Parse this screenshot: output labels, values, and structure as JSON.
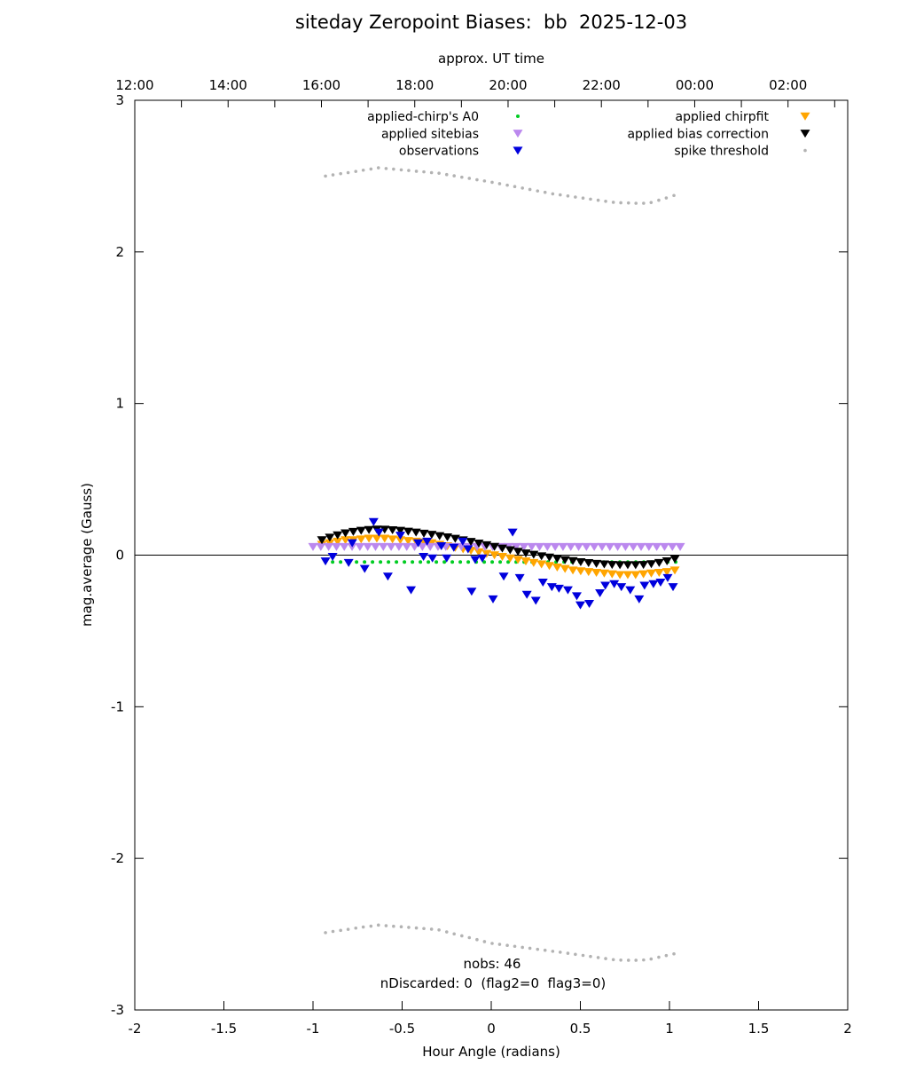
{
  "title": "siteday Zeropoint Biases:  bb  2025-12-03",
  "annotations": {
    "nobs": "nobs: 46",
    "ndiscarded": "nDiscarded: 0  (flag2=0  flag3=0)"
  },
  "x_axis": {
    "title": "Hour Angle (radians)",
    "min": -2,
    "max": 2,
    "ticks": [
      -2,
      -1.5,
      -1,
      -0.5,
      0,
      0.5,
      1,
      1.5,
      2
    ],
    "tick_labels": [
      "-2",
      "-1.5",
      "-1",
      "-0.5",
      "0",
      "0.5",
      "1",
      "1.5",
      "2"
    ]
  },
  "x2_axis": {
    "title": "approx. UT time",
    "start_rad": -2,
    "rad_per_hour": 0.261799,
    "labels": [
      {
        "hour": 0,
        "text": "12:00"
      },
      {
        "hour": 2,
        "text": "14:00"
      },
      {
        "hour": 4,
        "text": "16:00"
      },
      {
        "hour": 6,
        "text": "18:00"
      },
      {
        "hour": 8,
        "text": "20:00"
      },
      {
        "hour": 10,
        "text": "22:00"
      },
      {
        "hour": 12,
        "text": "00:00"
      },
      {
        "hour": 14,
        "text": "02:00"
      }
    ],
    "minor_hours": [
      1,
      3,
      5,
      7,
      9,
      11,
      13,
      15
    ]
  },
  "y_axis": {
    "title": "mag.average (Gauss)",
    "min": -3,
    "max": 3,
    "ticks": [
      3,
      2,
      1,
      0,
      -1,
      -2,
      -3
    ],
    "tick_labels": [
      "3",
      "2",
      "1",
      "0",
      "-1",
      "-2",
      "-3"
    ],
    "zero_line": true
  },
  "legend": [
    {
      "label": "applied-chirp's A0",
      "series": "applied-chirp's A0",
      "col": 0,
      "row": 0
    },
    {
      "label": "applied chirpfit",
      "series": "applied chirpfit",
      "col": 1,
      "row": 0
    },
    {
      "label": "applied sitebias",
      "series": "applied sitebias",
      "col": 0,
      "row": 1
    },
    {
      "label": "applied bias correction",
      "series": "applied bias correction",
      "col": 1,
      "row": 1
    },
    {
      "label": "observations",
      "series": "observations",
      "col": 0,
      "row": 2
    },
    {
      "label": "spike threshold",
      "series": "spike threshold",
      "col": 1,
      "row": 2
    }
  ],
  "colors": {
    "green": "#00cc22",
    "orange": "#ffa500",
    "purple": "#bb88ee",
    "black": "#000000",
    "blue": "#0000dd",
    "gray": "#b3b3b3"
  },
  "chart_data": {
    "type": "scatter",
    "xlabel": "Hour Angle (radians)",
    "ylabel": "mag.average (Gauss)",
    "xlim": [
      -2,
      2
    ],
    "ylim": [
      -3,
      3
    ],
    "grid": false,
    "legend_position": "top-inside-two-columns",
    "series": [
      {
        "name": "applied-chirp's A0",
        "color": "#00cc22",
        "marker": "dot",
        "marker_size": 4,
        "gen": {
          "x_start": -0.89,
          "x_end": 1.035,
          "n": 44,
          "y": -0.045
        }
      },
      {
        "name": "applied chirpfit",
        "color": "#ffa500",
        "marker": "triangle-down",
        "marker_size": 11,
        "points": [
          [
            -0.95,
            0.07
          ],
          [
            -0.906,
            0.08
          ],
          [
            -0.862,
            0.09
          ],
          [
            -0.818,
            0.1
          ],
          [
            -0.774,
            0.1
          ],
          [
            -0.73,
            0.105
          ],
          [
            -0.686,
            0.11
          ],
          [
            -0.642,
            0.11
          ],
          [
            -0.598,
            0.11
          ],
          [
            -0.554,
            0.105
          ],
          [
            -0.51,
            0.1
          ],
          [
            -0.466,
            0.095
          ],
          [
            -0.422,
            0.09
          ],
          [
            -0.378,
            0.085
          ],
          [
            -0.334,
            0.08
          ],
          [
            -0.29,
            0.07
          ],
          [
            -0.246,
            0.06
          ],
          [
            -0.202,
            0.05
          ],
          [
            -0.158,
            0.04
          ],
          [
            -0.114,
            0.03
          ],
          [
            -0.07,
            0.02
          ],
          [
            -0.026,
            0.01
          ],
          [
            0.018,
            0.0
          ],
          [
            0.062,
            -0.01
          ],
          [
            0.106,
            -0.02
          ],
          [
            0.15,
            -0.03
          ],
          [
            0.194,
            -0.04
          ],
          [
            0.238,
            -0.05
          ],
          [
            0.282,
            -0.06
          ],
          [
            0.326,
            -0.07
          ],
          [
            0.37,
            -0.08
          ],
          [
            0.414,
            -0.09
          ],
          [
            0.458,
            -0.1
          ],
          [
            0.502,
            -0.105
          ],
          [
            0.546,
            -0.11
          ],
          [
            0.59,
            -0.115
          ],
          [
            0.634,
            -0.12
          ],
          [
            0.678,
            -0.125
          ],
          [
            0.722,
            -0.13
          ],
          [
            0.766,
            -0.13
          ],
          [
            0.81,
            -0.13
          ],
          [
            0.854,
            -0.125
          ],
          [
            0.898,
            -0.12
          ],
          [
            0.942,
            -0.115
          ],
          [
            0.986,
            -0.11
          ],
          [
            1.03,
            -0.1
          ]
        ]
      },
      {
        "name": "applied sitebias",
        "color": "#bb88ee",
        "marker": "triangle-down",
        "marker_size": 11,
        "gen": {
          "x_start": -1.0,
          "x_end": 1.06,
          "n": 48,
          "y": 0.055
        }
      },
      {
        "name": "applied bias correction",
        "color": "#000000",
        "marker": "triangle-down",
        "marker_size": 11,
        "points": [
          [
            -0.95,
            0.1
          ],
          [
            -0.906,
            0.117
          ],
          [
            -0.862,
            0.132
          ],
          [
            -0.818,
            0.145
          ],
          [
            -0.774,
            0.155
          ],
          [
            -0.73,
            0.162
          ],
          [
            -0.686,
            0.167
          ],
          [
            -0.642,
            0.17
          ],
          [
            -0.598,
            0.169
          ],
          [
            -0.554,
            0.166
          ],
          [
            -0.51,
            0.162
          ],
          [
            -0.466,
            0.156
          ],
          [
            -0.422,
            0.15
          ],
          [
            -0.378,
            0.143
          ],
          [
            -0.334,
            0.136
          ],
          [
            -0.29,
            0.127
          ],
          [
            -0.246,
            0.119
          ],
          [
            -0.202,
            0.109
          ],
          [
            -0.158,
            0.099
          ],
          [
            -0.114,
            0.089
          ],
          [
            -0.07,
            0.078
          ],
          [
            -0.026,
            0.067
          ],
          [
            0.018,
            0.056
          ],
          [
            0.062,
            0.045
          ],
          [
            0.106,
            0.034
          ],
          [
            0.15,
            0.024
          ],
          [
            0.194,
            0.013
          ],
          [
            0.238,
            0.004
          ],
          [
            0.282,
            -0.006
          ],
          [
            0.326,
            -0.014
          ],
          [
            0.37,
            -0.023
          ],
          [
            0.414,
            -0.031
          ],
          [
            0.458,
            -0.038
          ],
          [
            0.502,
            -0.045
          ],
          [
            0.546,
            -0.051
          ],
          [
            0.59,
            -0.056
          ],
          [
            0.634,
            -0.06
          ],
          [
            0.678,
            -0.063
          ],
          [
            0.722,
            -0.065
          ],
          [
            0.766,
            -0.065
          ],
          [
            0.81,
            -0.065
          ],
          [
            0.854,
            -0.063
          ],
          [
            0.898,
            -0.058
          ],
          [
            0.942,
            -0.05
          ],
          [
            0.986,
            -0.039
          ],
          [
            1.03,
            -0.025
          ]
        ]
      },
      {
        "name": "observations",
        "color": "#0000dd",
        "marker": "triangle-down",
        "marker_size": 11,
        "points": [
          [
            -0.93,
            -0.04
          ],
          [
            -0.89,
            -0.01
          ],
          [
            -0.8,
            -0.05
          ],
          [
            -0.78,
            0.08
          ],
          [
            -0.71,
            -0.09
          ],
          [
            -0.66,
            0.22
          ],
          [
            -0.63,
            0.15
          ],
          [
            -0.58,
            -0.14
          ],
          [
            -0.51,
            0.13
          ],
          [
            -0.45,
            -0.23
          ],
          [
            -0.41,
            0.08
          ],
          [
            -0.38,
            -0.01
          ],
          [
            -0.36,
            0.09
          ],
          [
            -0.33,
            -0.02
          ],
          [
            -0.28,
            0.06
          ],
          [
            -0.25,
            -0.02
          ],
          [
            -0.21,
            0.05
          ],
          [
            -0.16,
            0.09
          ],
          [
            -0.13,
            0.04
          ],
          [
            -0.11,
            -0.24
          ],
          [
            -0.09,
            -0.03
          ],
          [
            -0.05,
            -0.02
          ],
          [
            0.01,
            -0.29
          ],
          [
            0.07,
            -0.14
          ],
          [
            0.12,
            0.15
          ],
          [
            0.16,
            -0.15
          ],
          [
            0.2,
            -0.26
          ],
          [
            0.25,
            -0.3
          ],
          [
            0.29,
            -0.18
          ],
          [
            0.34,
            -0.21
          ],
          [
            0.38,
            -0.22
          ],
          [
            0.43,
            -0.23
          ],
          [
            0.48,
            -0.27
          ],
          [
            0.5,
            -0.33
          ],
          [
            0.55,
            -0.32
          ],
          [
            0.61,
            -0.25
          ],
          [
            0.64,
            -0.2
          ],
          [
            0.69,
            -0.19
          ],
          [
            0.73,
            -0.21
          ],
          [
            0.78,
            -0.23
          ],
          [
            0.83,
            -0.29
          ],
          [
            0.86,
            -0.2
          ],
          [
            0.91,
            -0.19
          ],
          [
            0.95,
            -0.18
          ],
          [
            0.99,
            -0.15
          ],
          [
            1.02,
            -0.21
          ]
        ]
      },
      {
        "name": "spike threshold",
        "color": "#b3b3b3",
        "marker": "dot",
        "marker_size": 3.6,
        "points": [
          [
            -0.93,
            2.5
          ],
          [
            -0.888,
            2.508
          ],
          [
            -0.845,
            2.516
          ],
          [
            -0.803,
            2.523
          ],
          [
            -0.76,
            2.531
          ],
          [
            -0.718,
            2.539
          ],
          [
            -0.675,
            2.547
          ],
          [
            -0.633,
            2.555
          ],
          [
            -0.59,
            2.55
          ],
          [
            -0.548,
            2.546
          ],
          [
            -0.505,
            2.541
          ],
          [
            -0.463,
            2.537
          ],
          [
            -0.42,
            2.532
          ],
          [
            -0.378,
            2.528
          ],
          [
            -0.335,
            2.523
          ],
          [
            -0.293,
            2.519
          ],
          [
            -0.25,
            2.51
          ],
          [
            -0.208,
            2.502
          ],
          [
            -0.165,
            2.493
          ],
          [
            -0.123,
            2.485
          ],
          [
            -0.08,
            2.476
          ],
          [
            -0.038,
            2.468
          ],
          [
            0.005,
            2.459
          ],
          [
            0.047,
            2.45
          ],
          [
            0.09,
            2.44
          ],
          [
            0.132,
            2.431
          ],
          [
            0.175,
            2.421
          ],
          [
            0.217,
            2.412
          ],
          [
            0.26,
            2.402
          ],
          [
            0.302,
            2.393
          ],
          [
            0.345,
            2.383
          ],
          [
            0.387,
            2.376
          ],
          [
            0.43,
            2.369
          ],
          [
            0.472,
            2.362
          ],
          [
            0.515,
            2.355
          ],
          [
            0.557,
            2.348
          ],
          [
            0.6,
            2.341
          ],
          [
            0.642,
            2.334
          ],
          [
            0.685,
            2.327
          ],
          [
            0.727,
            2.324
          ],
          [
            0.77,
            2.323
          ],
          [
            0.812,
            2.321
          ],
          [
            0.855,
            2.321
          ],
          [
            0.897,
            2.326
          ],
          [
            0.94,
            2.341
          ],
          [
            0.982,
            2.356
          ],
          [
            1.025,
            2.372
          ],
          [
            -0.93,
            -2.49
          ],
          [
            -0.888,
            -2.482
          ],
          [
            -0.845,
            -2.475
          ],
          [
            -0.803,
            -2.468
          ],
          [
            -0.76,
            -2.46
          ],
          [
            -0.718,
            -2.453
          ],
          [
            -0.675,
            -2.447
          ],
          [
            -0.633,
            -2.44
          ],
          [
            -0.59,
            -2.444
          ],
          [
            -0.548,
            -2.448
          ],
          [
            -0.505,
            -2.451
          ],
          [
            -0.463,
            -2.455
          ],
          [
            -0.42,
            -2.459
          ],
          [
            -0.378,
            -2.463
          ],
          [
            -0.335,
            -2.467
          ],
          [
            -0.293,
            -2.472
          ],
          [
            -0.25,
            -2.485
          ],
          [
            -0.208,
            -2.498
          ],
          [
            -0.165,
            -2.511
          ],
          [
            -0.123,
            -2.523
          ],
          [
            -0.08,
            -2.536
          ],
          [
            -0.038,
            -2.549
          ],
          [
            0.005,
            -2.561
          ],
          [
            0.047,
            -2.567
          ],
          [
            0.09,
            -2.574
          ],
          [
            0.132,
            -2.58
          ],
          [
            0.175,
            -2.587
          ],
          [
            0.217,
            -2.593
          ],
          [
            0.26,
            -2.6
          ],
          [
            0.302,
            -2.606
          ],
          [
            0.345,
            -2.613
          ],
          [
            0.387,
            -2.619
          ],
          [
            0.43,
            -2.626
          ],
          [
            0.472,
            -2.633
          ],
          [
            0.515,
            -2.64
          ],
          [
            0.557,
            -2.647
          ],
          [
            0.6,
            -2.654
          ],
          [
            0.642,
            -2.661
          ],
          [
            0.685,
            -2.668
          ],
          [
            0.727,
            -2.671
          ],
          [
            0.77,
            -2.672
          ],
          [
            0.812,
            -2.672
          ],
          [
            0.855,
            -2.67
          ],
          [
            0.897,
            -2.664
          ],
          [
            0.94,
            -2.652
          ],
          [
            0.982,
            -2.641
          ],
          [
            1.025,
            -2.63
          ]
        ]
      }
    ]
  }
}
